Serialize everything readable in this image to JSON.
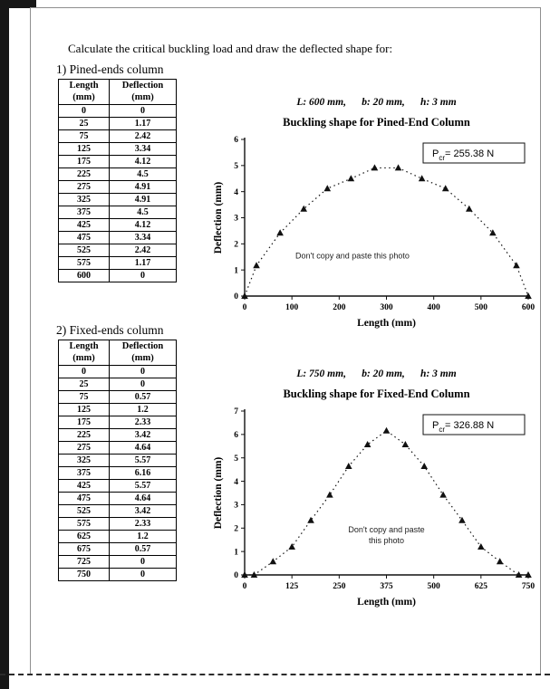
{
  "page": {
    "prompt": "Calculate the critical buckling load and draw the deflected shape for:",
    "sections": [
      {
        "heading": "1) Pined-ends column",
        "table": {
          "col_headers": [
            [
              "Length",
              "(mm)"
            ],
            [
              "Deflection",
              "(mm)"
            ]
          ],
          "rows": [
            [
              "0",
              "0"
            ],
            [
              "25",
              "1.17"
            ],
            [
              "75",
              "2.42"
            ],
            [
              "125",
              "3.34"
            ],
            [
              "175",
              "4.12"
            ],
            [
              "225",
              "4.5"
            ],
            [
              "275",
              "4.91"
            ],
            [
              "325",
              "4.91"
            ],
            [
              "375",
              "4.5"
            ],
            [
              "425",
              "4.12"
            ],
            [
              "475",
              "3.34"
            ],
            [
              "525",
              "2.42"
            ],
            [
              "575",
              "1.17"
            ],
            [
              "600",
              "0"
            ]
          ]
        }
      },
      {
        "heading": "2) Fixed-ends column",
        "table": {
          "col_headers": [
            [
              "Length",
              "(mm)"
            ],
            [
              "Deflection",
              "(mm)"
            ]
          ],
          "rows": [
            [
              "0",
              "0"
            ],
            [
              "25",
              "0"
            ],
            [
              "75",
              "0.57"
            ],
            [
              "125",
              "1.2"
            ],
            [
              "175",
              "2.33"
            ],
            [
              "225",
              "3.42"
            ],
            [
              "275",
              "4.64"
            ],
            [
              "325",
              "5.57"
            ],
            [
              "375",
              "6.16"
            ],
            [
              "425",
              "5.57"
            ],
            [
              "475",
              "4.64"
            ],
            [
              "525",
              "3.42"
            ],
            [
              "575",
              "2.33"
            ],
            [
              "625",
              "1.2"
            ],
            [
              "675",
              "0.57"
            ],
            [
              "725",
              "0"
            ],
            [
              "750",
              "0"
            ]
          ]
        }
      }
    ]
  },
  "chart_data": [
    {
      "type": "scatter",
      "line_style": "dotted",
      "marker": "triangle",
      "color": "#111111",
      "subtitle": "L: 600 mm,      b: 20 mm,      h: 3 mm",
      "title": "Buckling shape for Pined-End Column",
      "xlabel": "Length (mm)",
      "ylabel": "Deflection (mm)",
      "xlim": [
        0,
        600
      ],
      "ylim": [
        0,
        6
      ],
      "xticks": [
        0,
        100,
        200,
        300,
        400,
        500,
        600
      ],
      "yticks": [
        0,
        1,
        2,
        3,
        4,
        5,
        6
      ],
      "x": [
        0,
        25,
        75,
        125,
        175,
        225,
        275,
        325,
        375,
        425,
        475,
        525,
        575,
        600
      ],
      "y": [
        0,
        1.17,
        2.42,
        3.34,
        4.12,
        4.5,
        4.91,
        4.91,
        4.5,
        4.12,
        3.34,
        2.42,
        1.17,
        0
      ],
      "annotation": {
        "p": "P",
        "sub": "cr",
        "rest": "= 255.38 N"
      },
      "watermark": {
        "lines": [
          "Don't copy and paste this photo"
        ],
        "fx": 0.38,
        "fy": 0.76
      }
    },
    {
      "type": "scatter",
      "line_style": "dotted",
      "marker": "triangle",
      "color": "#111111",
      "subtitle": "L: 750 mm,      b: 20 mm,      h: 3 mm",
      "title": "Buckling shape for Fixed-End Column",
      "xlabel": "Length (mm)",
      "ylabel": "Deflection (mm)",
      "xlim": [
        0,
        750
      ],
      "ylim": [
        0,
        7
      ],
      "xticks": [
        0,
        125,
        250,
        375,
        500,
        625,
        750
      ],
      "yticks": [
        0,
        1,
        2,
        3,
        4,
        5,
        6,
        7
      ],
      "x": [
        0,
        25,
        75,
        125,
        175,
        225,
        275,
        325,
        375,
        425,
        475,
        525,
        575,
        625,
        675,
        725,
        750
      ],
      "y": [
        0,
        0,
        0.57,
        1.2,
        2.33,
        3.42,
        4.64,
        5.57,
        6.16,
        5.57,
        4.64,
        3.42,
        2.33,
        1.2,
        0.57,
        0,
        0
      ],
      "annotation": {
        "p": "P",
        "sub": "cr",
        "rest": "= 326.88 N"
      },
      "watermark": {
        "lines": [
          "Don't copy and paste",
          "this photo"
        ],
        "fx": 0.5,
        "fy": 0.74
      }
    }
  ]
}
